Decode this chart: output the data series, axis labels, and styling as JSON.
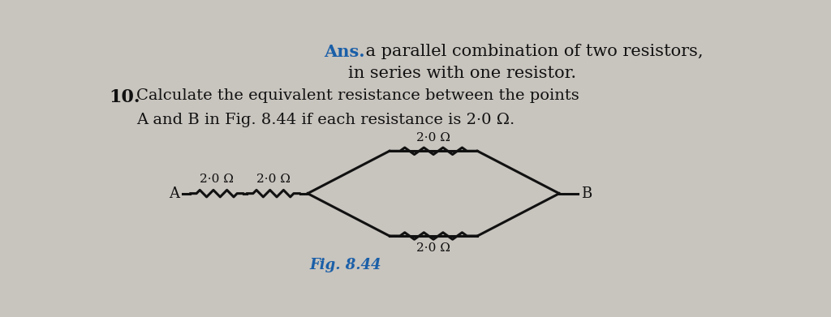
{
  "bg_color": "#c8c4be",
  "title_line1": "Ans.",
  "title_line1_color": "#1a5fa8",
  "title_line1_rest": " a parallel combination of two resistors,",
  "title_line2": "in series with one resistor.",
  "question_num": "10.",
  "question_text1": "Calculate the equivalent resistance between the points",
  "question_text2": "A and B in Fig. 8.44 if each resistance is 2·0 Ω.",
  "fig_label": "Fig. 8.44",
  "fig_label_color": "#1a5fa8",
  "resistance_label": "2·0 Ω",
  "text_color": "#111111",
  "line_color": "#111111",
  "ans_fontsize": 15,
  "q_num_fontsize": 16,
  "q_text_fontsize": 14,
  "circuit_lw": 2.2
}
